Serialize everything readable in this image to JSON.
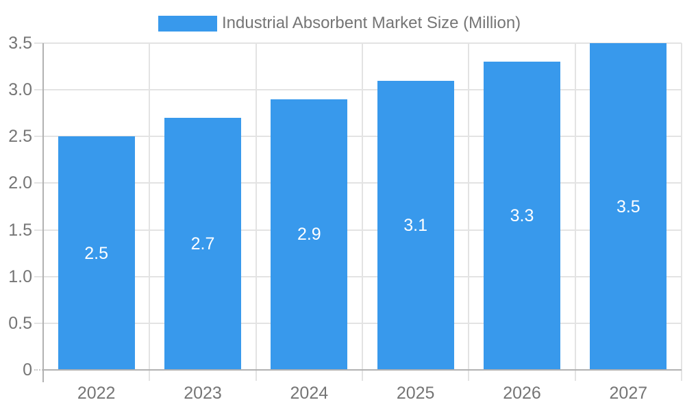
{
  "chart_data": {
    "type": "bar",
    "title": "Industrial Absorbent Market Size (Million)",
    "categories": [
      "2022",
      "2023",
      "2024",
      "2025",
      "2026",
      "2027"
    ],
    "values": [
      2.5,
      2.7,
      2.9,
      3.1,
      3.3,
      3.5
    ],
    "bar_labels": [
      "2.5",
      "2.7",
      "2.9",
      "3.1",
      "3.3",
      "3.5"
    ],
    "xlabel": "",
    "ylabel": "",
    "ylim": [
      0,
      3.5
    ],
    "yticks": [
      {
        "v": 0,
        "label": "0"
      },
      {
        "v": 0.5,
        "label": "0.5"
      },
      {
        "v": 1,
        "label": "1.0"
      },
      {
        "v": 1.5,
        "label": "1.5"
      },
      {
        "v": 2,
        "label": "2.0"
      },
      {
        "v": 2.5,
        "label": "2.5"
      },
      {
        "v": 3,
        "label": "3.0"
      },
      {
        "v": 3.5,
        "label": "3.5"
      }
    ],
    "grid": true,
    "legend_position": "top-center",
    "colors": {
      "bar": "#3899EC",
      "grid": "#e3e3e3",
      "axis": "#b1b1b1",
      "axis_text": "#757575",
      "bar_label_text": "#ffffff",
      "background": "#ffffff"
    }
  }
}
